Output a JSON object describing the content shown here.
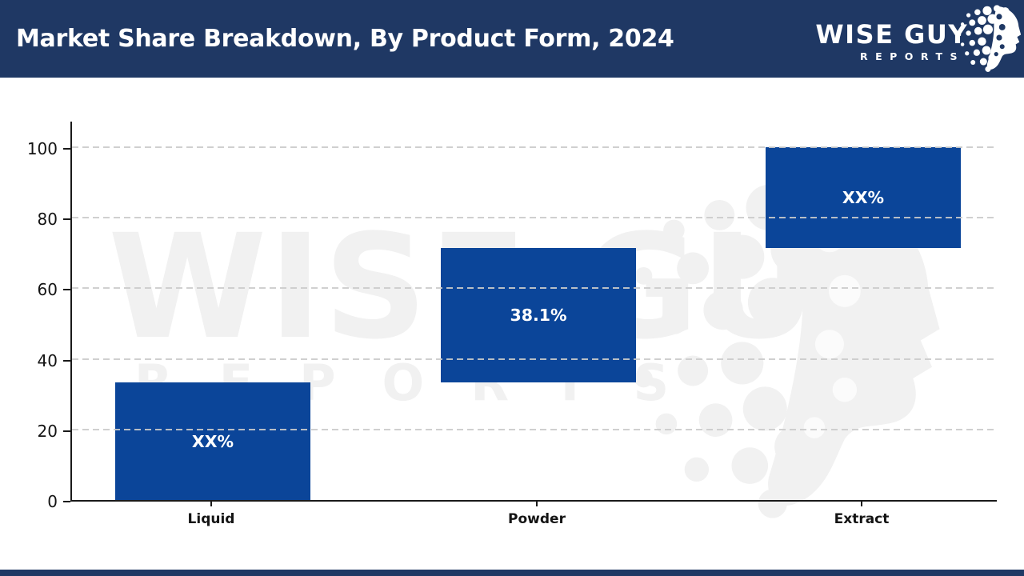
{
  "header": {
    "title": "Market Share Breakdown, By Product Form, 2024",
    "logo_line1": "WISE GUY",
    "logo_line2": "REPORTS",
    "bg_color": "#1f3864",
    "text_color": "#ffffff"
  },
  "watermark": {
    "line1": "WISE GUY",
    "line2": "REPORTS"
  },
  "chart_data": {
    "type": "bar",
    "variant": "floating-waterfall",
    "title": "Market Share Breakdown, By Product Form, 2024",
    "categories": [
      "Liquid",
      "Powder",
      "Extract"
    ],
    "bars": [
      {
        "category": "Liquid",
        "start": 0,
        "end": 33.3,
        "label": "XX%"
      },
      {
        "category": "Powder",
        "start": 33.3,
        "end": 71.4,
        "label": "38.1%"
      },
      {
        "category": "Extract",
        "start": 71.4,
        "end": 100,
        "label": "XX%"
      }
    ],
    "y_ticks": [
      0,
      20,
      40,
      60,
      80,
      100
    ],
    "ylim": [
      0,
      107.5
    ],
    "xlabel": "",
    "ylabel": "",
    "grid": "horizontal-dashed",
    "legend_position": "none",
    "bar_color": "#0b4599",
    "bar_label_color": "#ffffff",
    "axis_color": "#1a1a1a",
    "gridline_color": "#d9d9d9"
  },
  "footer": {
    "bg_color": "#1f3864"
  }
}
